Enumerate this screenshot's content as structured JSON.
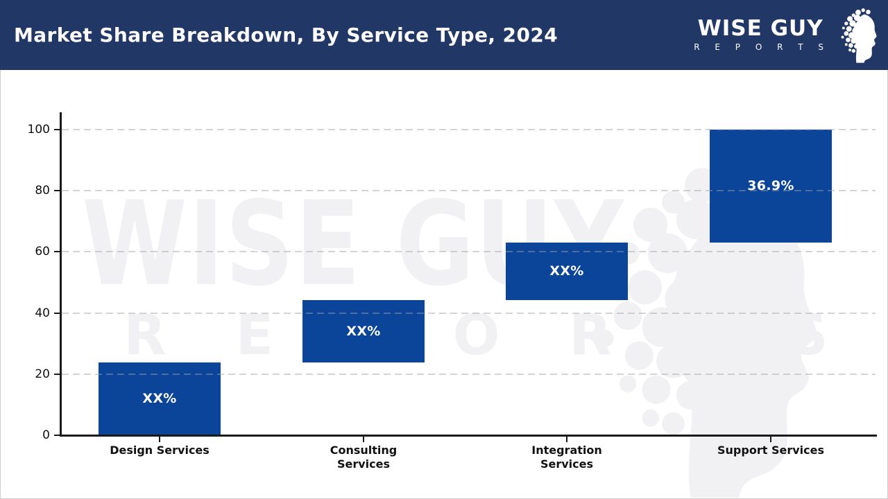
{
  "header": {
    "title": "Market Share Breakdown, By Service Type, 2024",
    "logo": {
      "line1": "WISE GUY",
      "line2": "R E P O R T S"
    }
  },
  "watermark": {
    "line1": "WISE GUY",
    "line2": "R E P O R T S"
  },
  "chart_data": {
    "type": "bar",
    "subtype": "floating-waterfall",
    "title": "Market Share Breakdown, By Service Type, 2024",
    "categories": [
      "Design Services",
      "Consulting\nServices",
      "Integration\nServices",
      "Support Services"
    ],
    "segments": [
      {
        "category": "Design Services",
        "start": 0,
        "end": 23.9,
        "value": 23.9,
        "label": "XX%"
      },
      {
        "category": "Consulting Services",
        "start": 23.9,
        "end": 44.3,
        "value": 20.4,
        "label": "XX%"
      },
      {
        "category": "Integration Services",
        "start": 44.3,
        "end": 63.1,
        "value": 18.8,
        "label": "XX%"
      },
      {
        "category": "Support Services",
        "start": 63.1,
        "end": 100,
        "value": 36.9,
        "label": "36.9%"
      }
    ],
    "ylim": [
      0,
      100
    ],
    "yticks": [
      0,
      20,
      40,
      60,
      80,
      100
    ],
    "xlabel": "",
    "ylabel": "",
    "grid": "horizontal-dashed",
    "legend": "none",
    "bar_color": "#0a4599"
  },
  "colors": {
    "header_bg": "#213765",
    "bar": "#0a4599",
    "grid": "#dcdcde",
    "axis": "#1a1a1a",
    "watermark": "#f1f1f4"
  }
}
